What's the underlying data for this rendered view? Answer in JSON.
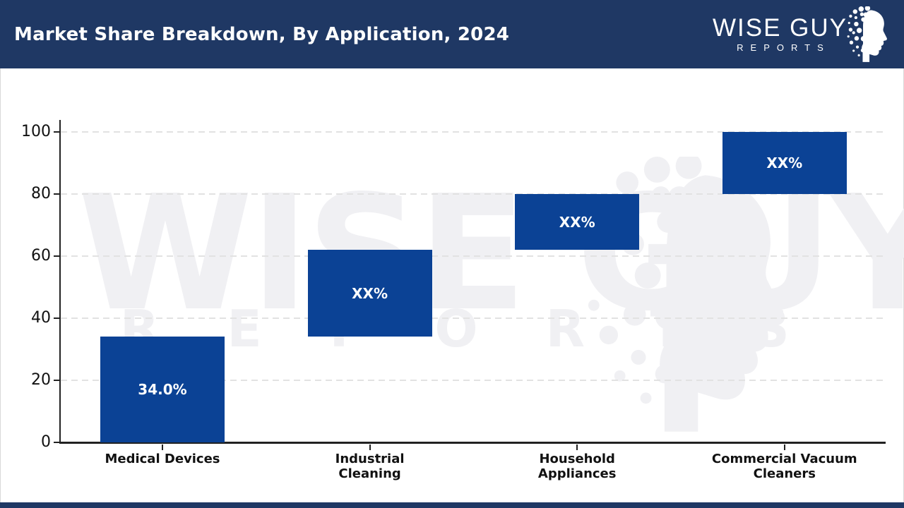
{
  "header": {
    "title": "Market Share Breakdown, By Application, 2024",
    "logo": {
      "line1": "WISE GUY",
      "line2": "REPORTS"
    }
  },
  "watermark": {
    "line1": "WISE GUY",
    "line2": "REPORTS"
  },
  "colors": {
    "header_bg": "#1f3864",
    "footer_bg": "#1f3864",
    "bar": "#0b4295",
    "bar_label": "#ffffff",
    "grid": "#e2e2e2",
    "axis": "#222222",
    "watermark": "#f0f0f3"
  },
  "chart_data": {
    "type": "bar",
    "subtype": "waterfall",
    "title": "Market Share Breakdown, By Application, 2024",
    "categories": [
      "Medical Devices",
      "Industrial Cleaning",
      "Household Appliances",
      "Commercial Vacuum Cleaners"
    ],
    "category_lines": [
      [
        "Medical Devices"
      ],
      [
        "Industrial",
        "Cleaning"
      ],
      [
        "Household",
        "Appliances"
      ],
      [
        "Commercial Vacuum",
        "Cleaners"
      ]
    ],
    "series": [
      {
        "name": "Market Share (%)",
        "starts": [
          0,
          34,
          62,
          80
        ],
        "ends": [
          34,
          62,
          80,
          100
        ]
      }
    ],
    "bar_labels": [
      "34.0%",
      "XX%",
      "XX%",
      "XX%"
    ],
    "ylim": [
      0,
      100
    ],
    "yticks": [
      0,
      20,
      40,
      60,
      80,
      100
    ],
    "xlabel": "",
    "ylabel": "",
    "grid": "horizontal-dashed",
    "legend": "none"
  }
}
